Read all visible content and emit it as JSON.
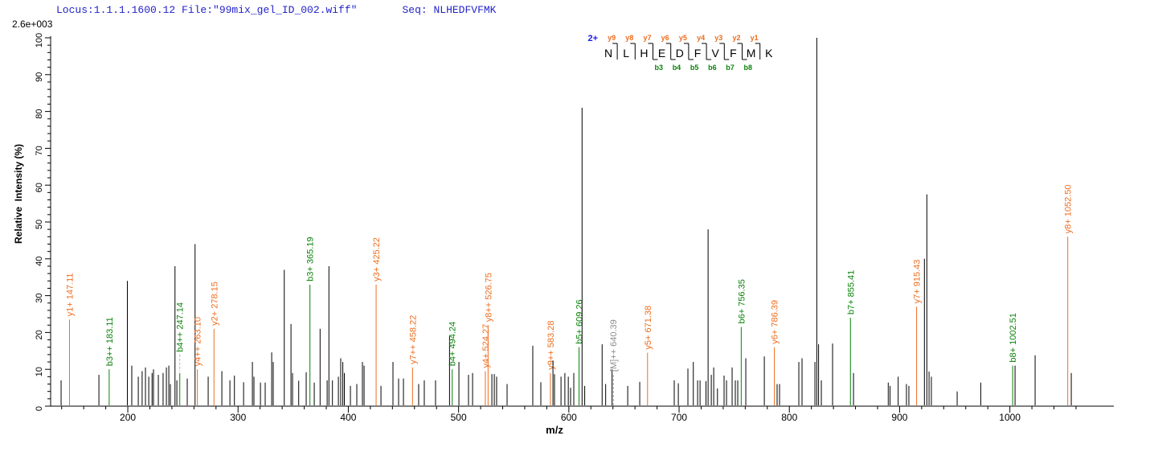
{
  "header": {
    "locus_file": "Locus:1.1.1.1600.12 File:\"99mix_gel_ID_002.wiff\"",
    "seq_label": "Seq: NLHEDFVFMK",
    "base_peak_intensity": "2.6e+003"
  },
  "sequence_map": {
    "charge": "2+",
    "residues": [
      "N",
      "L",
      "H",
      "E",
      "D",
      "F",
      "V",
      "F",
      "M",
      "K"
    ],
    "y_ion_labels": [
      "y9",
      "y8",
      "y7",
      "y6",
      "y5",
      "y4",
      "y3",
      "y2",
      "y1"
    ],
    "b_ion_labels": [
      "b3",
      "b4",
      "b5",
      "b6",
      "b7",
      "b8"
    ],
    "b_ion_positions": [
      3,
      4,
      5,
      6,
      7,
      8
    ]
  },
  "colors": {
    "y_ion": "#ed6d1e",
    "b_ion": "#0a820a",
    "peak": "#000000",
    "precursor_peak": "#999999",
    "precursor_label": "#8c8c8c",
    "leader_line": "#b0b0b0",
    "header_text": "#2323cb",
    "charge_text": "#1a1aee",
    "axis": "#000000"
  },
  "chart_data": {
    "type": "bar",
    "subtype": "centroid-mass-spectrum",
    "title": "",
    "xlabel": "m/z",
    "ylabel": "Relative  Intensity (%)",
    "xlim": [
      130,
      1095
    ],
    "ylim": [
      0,
      100
    ],
    "grid": false,
    "legend": false,
    "x_major_ticks": [
      200,
      300,
      400,
      500,
      600,
      700,
      800,
      900,
      1000
    ],
    "x_minor_tick_step": 20,
    "y_major_tick_step": 10,
    "y_minor_tick_step": 2,
    "peaks": [
      {
        "mz": 139.5,
        "intensity": 7
      },
      {
        "mz": 147.11,
        "intensity": 23.5,
        "ion": "y",
        "label": "y1+ 147.11"
      },
      {
        "mz": 173.8,
        "intensity": 8.5
      },
      {
        "mz": 183.11,
        "intensity": 10,
        "ion": "b",
        "label": "b3++ 183.11"
      },
      {
        "mz": 199.6,
        "intensity": 34
      },
      {
        "mz": 203.6,
        "intensity": 11
      },
      {
        "mz": 209.5,
        "intensity": 8
      },
      {
        "mz": 213.0,
        "intensity": 9.5
      },
      {
        "mz": 216.0,
        "intensity": 10.5
      },
      {
        "mz": 219.0,
        "intensity": 8
      },
      {
        "mz": 222.0,
        "intensity": 9
      },
      {
        "mz": 223.3,
        "intensity": 10
      },
      {
        "mz": 227.7,
        "intensity": 8.5
      },
      {
        "mz": 232.0,
        "intensity": 9
      },
      {
        "mz": 235.0,
        "intensity": 10.5
      },
      {
        "mz": 237.2,
        "intensity": 11
      },
      {
        "mz": 238.6,
        "intensity": 6
      },
      {
        "mz": 242.8,
        "intensity": 38
      },
      {
        "mz": 244.5,
        "intensity": 7
      },
      {
        "mz": 247.14,
        "intensity": 9,
        "ion": "b",
        "label": "b4++ 247.14",
        "leader": true
      },
      {
        "mz": 253.9,
        "intensity": 7.5
      },
      {
        "mz": 261.0,
        "intensity": 44
      },
      {
        "mz": 263.1,
        "intensity": 10,
        "ion": "y",
        "label": "y4++ 263.10"
      },
      {
        "mz": 272.9,
        "intensity": 8
      },
      {
        "mz": 278.15,
        "intensity": 21,
        "ion": "y",
        "label": "y2+ 278.15"
      },
      {
        "mz": 285.3,
        "intensity": 9.5
      },
      {
        "mz": 292.6,
        "intensity": 7
      },
      {
        "mz": 296.7,
        "intensity": 8.3
      },
      {
        "mz": 305.0,
        "intensity": 6.5
      },
      {
        "mz": 313.0,
        "intensity": 12
      },
      {
        "mz": 314.4,
        "intensity": 8
      },
      {
        "mz": 320.3,
        "intensity": 6.4
      },
      {
        "mz": 324.6,
        "intensity": 6.4
      },
      {
        "mz": 330.5,
        "intensity": 14.6
      },
      {
        "mz": 331.9,
        "intensity": 12
      },
      {
        "mz": 341.9,
        "intensity": 37
      },
      {
        "mz": 348.0,
        "intensity": 22.3
      },
      {
        "mz": 349.4,
        "intensity": 9
      },
      {
        "mz": 355.0,
        "intensity": 6.9
      },
      {
        "mz": 361.8,
        "intensity": 9.2
      },
      {
        "mz": 365.19,
        "intensity": 33,
        "ion": "b",
        "label": "b3+ 365.19"
      },
      {
        "mz": 369.1,
        "intensity": 6.4
      },
      {
        "mz": 374.4,
        "intensity": 21
      },
      {
        "mz": 380.8,
        "intensity": 7
      },
      {
        "mz": 382.4,
        "intensity": 38
      },
      {
        "mz": 385.6,
        "intensity": 7
      },
      {
        "mz": 391.0,
        "intensity": 8
      },
      {
        "mz": 393.1,
        "intensity": 13
      },
      {
        "mz": 395.0,
        "intensity": 12
      },
      {
        "mz": 396.4,
        "intensity": 9
      },
      {
        "mz": 401.9,
        "intensity": 5.5
      },
      {
        "mz": 407.7,
        "intensity": 6
      },
      {
        "mz": 412.8,
        "intensity": 12
      },
      {
        "mz": 414.3,
        "intensity": 11
      },
      {
        "mz": 425.22,
        "intensity": 33,
        "ion": "y",
        "label": "y3+ 425.22"
      },
      {
        "mz": 429.6,
        "intensity": 5.5
      },
      {
        "mz": 440.5,
        "intensity": 12
      },
      {
        "mz": 445.6,
        "intensity": 7.5
      },
      {
        "mz": 450.0,
        "intensity": 7.5
      },
      {
        "mz": 458.22,
        "intensity": 10.5,
        "ion": "y",
        "label": "y7++ 458.22"
      },
      {
        "mz": 463.8,
        "intensity": 6
      },
      {
        "mz": 468.9,
        "intensity": 7
      },
      {
        "mz": 479.1,
        "intensity": 7
      },
      {
        "mz": 491.8,
        "intensity": 19
      },
      {
        "mz": 494.24,
        "intensity": 10,
        "ion": "b",
        "label": "b4+ 494.24"
      },
      {
        "mz": 500.3,
        "intensity": 12
      },
      {
        "mz": 509.0,
        "intensity": 8.5
      },
      {
        "mz": 512.7,
        "intensity": 9
      },
      {
        "mz": 524.27,
        "intensity": 9.5,
        "ion": "y",
        "label": "y4+ 524.27"
      },
      {
        "mz": 526.75,
        "intensity": 22,
        "ion": "y",
        "label": "y8++ 526.75"
      },
      {
        "mz": 530.2,
        "intensity": 8.7
      },
      {
        "mz": 532.4,
        "intensity": 8.7
      },
      {
        "mz": 534.5,
        "intensity": 8
      },
      {
        "mz": 544.0,
        "intensity": 6
      },
      {
        "mz": 567.3,
        "intensity": 16.4
      },
      {
        "mz": 574.6,
        "intensity": 6.5
      },
      {
        "mz": 583.28,
        "intensity": 9,
        "ion": "y",
        "label": "y9++ 583.28"
      },
      {
        "mz": 585.6,
        "intensity": 12.4
      },
      {
        "mz": 587.0,
        "intensity": 8.7
      },
      {
        "mz": 592.9,
        "intensity": 8
      },
      {
        "mz": 596.4,
        "intensity": 9
      },
      {
        "mz": 599.5,
        "intensity": 8
      },
      {
        "mz": 601.6,
        "intensity": 5
      },
      {
        "mz": 604.5,
        "intensity": 9
      },
      {
        "mz": 609.26,
        "intensity": 16,
        "ion": "b",
        "label": "b5+ 609.26"
      },
      {
        "mz": 612.0,
        "intensity": 81
      },
      {
        "mz": 614.4,
        "intensity": 5.5
      },
      {
        "mz": 630.2,
        "intensity": 16.8
      },
      {
        "mz": 633.4,
        "intensity": 6
      },
      {
        "mz": 639.2,
        "intensity": 10
      },
      {
        "mz": 640.39,
        "intensity": 8.5,
        "ion": "precursor",
        "label": "[M]++ 640.39"
      },
      {
        "mz": 653.4,
        "intensity": 5.5
      },
      {
        "mz": 664.3,
        "intensity": 6.6
      },
      {
        "mz": 671.38,
        "intensity": 14.5,
        "ion": "y",
        "label": "y5+ 671.38"
      },
      {
        "mz": 695.6,
        "intensity": 7
      },
      {
        "mz": 699.3,
        "intensity": 6.2
      },
      {
        "mz": 708.0,
        "intensity": 10.2
      },
      {
        "mz": 712.9,
        "intensity": 12
      },
      {
        "mz": 716.8,
        "intensity": 7
      },
      {
        "mz": 719.0,
        "intensity": 7
      },
      {
        "mz": 724.4,
        "intensity": 6.8
      },
      {
        "mz": 726.3,
        "intensity": 48
      },
      {
        "mz": 729.2,
        "intensity": 8.5
      },
      {
        "mz": 731.4,
        "intensity": 10.5
      },
      {
        "mz": 734.8,
        "intensity": 4.8
      },
      {
        "mz": 740.8,
        "intensity": 8.3
      },
      {
        "mz": 743.0,
        "intensity": 7
      },
      {
        "mz": 748.1,
        "intensity": 10.5
      },
      {
        "mz": 751.0,
        "intensity": 7
      },
      {
        "mz": 753.2,
        "intensity": 7
      },
      {
        "mz": 756.35,
        "intensity": 21.5,
        "ion": "b",
        "label": "b6+ 756.35"
      },
      {
        "mz": 760.5,
        "intensity": 13
      },
      {
        "mz": 777.3,
        "intensity": 13.5
      },
      {
        "mz": 786.39,
        "intensity": 16,
        "ion": "y",
        "label": "y6+ 786.39"
      },
      {
        "mz": 788.9,
        "intensity": 6
      },
      {
        "mz": 791.1,
        "intensity": 6
      },
      {
        "mz": 808.6,
        "intensity": 12
      },
      {
        "mz": 811.5,
        "intensity": 13
      },
      {
        "mz": 823.2,
        "intensity": 12
      },
      {
        "mz": 824.9,
        "intensity": 100
      },
      {
        "mz": 826.5,
        "intensity": 16.8
      },
      {
        "mz": 829.0,
        "intensity": 7
      },
      {
        "mz": 839.2,
        "intensity": 17
      },
      {
        "mz": 855.41,
        "intensity": 24,
        "ion": "b",
        "label": "b7+ 855.41"
      },
      {
        "mz": 858.2,
        "intensity": 9
      },
      {
        "mz": 889.7,
        "intensity": 6.4
      },
      {
        "mz": 891.3,
        "intensity": 5.5
      },
      {
        "mz": 898.7,
        "intensity": 8
      },
      {
        "mz": 906.2,
        "intensity": 6
      },
      {
        "mz": 908.4,
        "intensity": 5.5
      },
      {
        "mz": 915.43,
        "intensity": 27,
        "ion": "y",
        "label": "y7+ 915.43"
      },
      {
        "mz": 922.5,
        "intensity": 40
      },
      {
        "mz": 924.7,
        "intensity": 57.5
      },
      {
        "mz": 926.7,
        "intensity": 9.4
      },
      {
        "mz": 928.8,
        "intensity": 8
      },
      {
        "mz": 952.2,
        "intensity": 4
      },
      {
        "mz": 973.6,
        "intensity": 6.4
      },
      {
        "mz": 1002.51,
        "intensity": 11,
        "ion": "b",
        "label": "b8+ 1002.51"
      },
      {
        "mz": 1004.7,
        "intensity": 11
      },
      {
        "mz": 1022.9,
        "intensity": 13.8
      },
      {
        "mz": 1052.5,
        "intensity": 46,
        "ion": "y",
        "label": "y8+ 1052.50"
      },
      {
        "mz": 1055.7,
        "intensity": 9
      }
    ]
  }
}
